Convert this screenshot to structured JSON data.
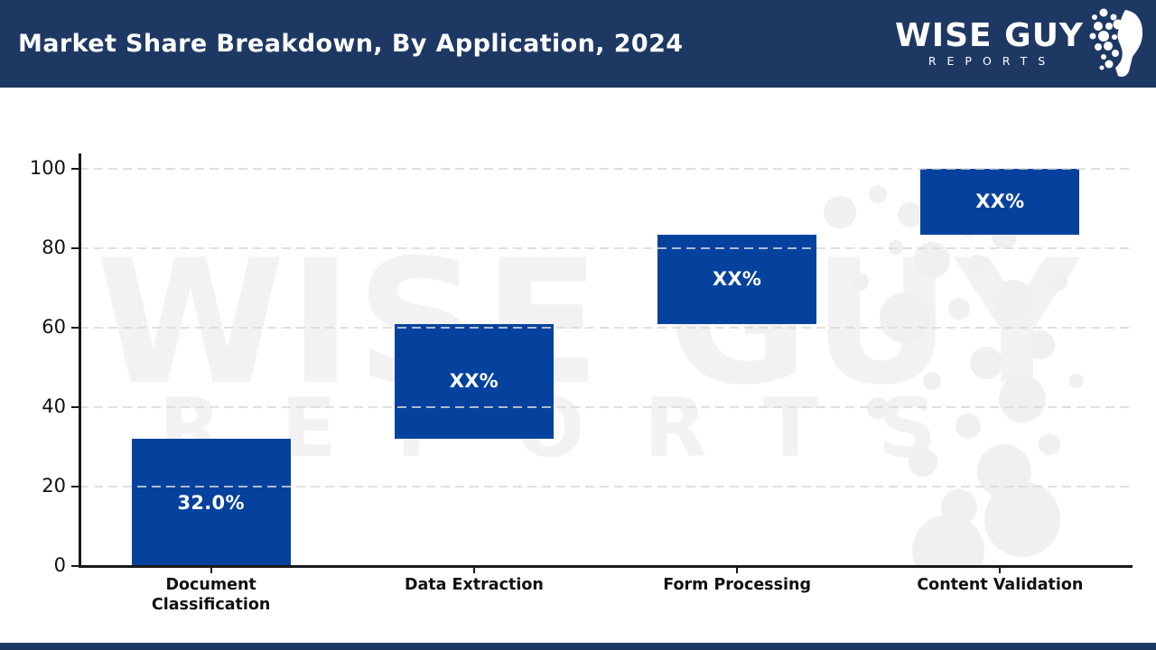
{
  "header": {
    "title": "Market Share Breakdown, By Application, 2024",
    "logo": {
      "line1": "WISE GUY",
      "line2": "REPORTS"
    }
  },
  "watermark": {
    "line1": "WISE GUY",
    "line2": "REPORTS"
  },
  "chart_data": {
    "type": "bar",
    "subtype": "waterfall",
    "title": "Market Share Breakdown, By Application, 2024",
    "categories": [
      "Document Classification",
      "Data Extraction",
      "Form Processing",
      "Content Validation"
    ],
    "segments": [
      {
        "category": "Document Classification",
        "start": 0,
        "end": 32,
        "label": "32.0%"
      },
      {
        "category": "Data Extraction",
        "start": 32,
        "end": 61,
        "label": "XX%"
      },
      {
        "category": "Form Processing",
        "start": 61,
        "end": 83.5,
        "label": "XX%"
      },
      {
        "category": "Content Validation",
        "start": 83.5,
        "end": 100,
        "label": "XX%"
      }
    ],
    "yticks": [
      0,
      20,
      40,
      60,
      80,
      100
    ],
    "ylim": [
      0,
      104
    ],
    "xlabel": "",
    "ylabel": "",
    "grid": "horizontal-dashed",
    "legend": "none",
    "bar_color": "#05429d",
    "bar_label_color": "#ffffff"
  },
  "colors": {
    "header_bg": "#1e3864",
    "footer_bg": "#1e3864",
    "accent_blue": "#05429d",
    "axis": "#1a1a1a",
    "grid": "#d9d9d9",
    "watermark": "#f2f2f2",
    "title_text": "#ffffff"
  }
}
